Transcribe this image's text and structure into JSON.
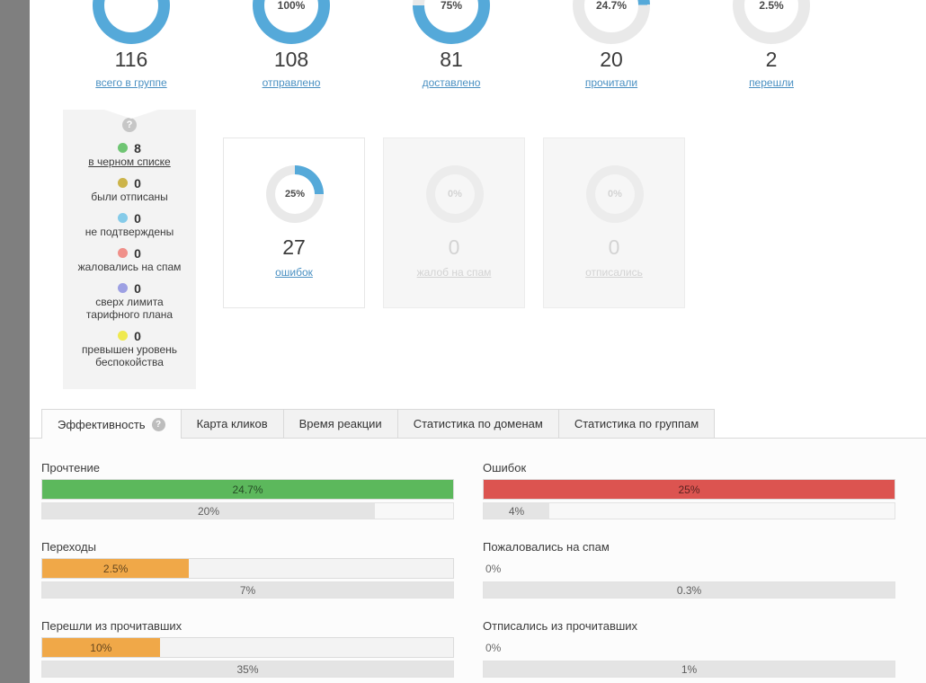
{
  "ui": {
    "help": "?"
  },
  "colors": {
    "accent": "#55a9d9",
    "donut_track": "#e9e9e9",
    "disabled_track": "#ececec",
    "green": "#5cb85c",
    "orange": "#f0a848",
    "red": "#dc5450",
    "link": "#4a90c2"
  },
  "top_cards": [
    {
      "percent": "",
      "value": "116",
      "label": "всего в группе",
      "donut_percent": 100
    },
    {
      "percent": "100%",
      "value": "108",
      "label": "отправлено",
      "donut_percent": 100
    },
    {
      "percent": "75%",
      "value": "81",
      "label": "доставлено",
      "donut_percent": 75
    },
    {
      "percent": "24.7%",
      "value": "20",
      "label": "прочитали",
      "donut_percent": 24.7
    },
    {
      "percent": "2.5%",
      "value": "2",
      "label": "перешли",
      "donut_percent": 2.5
    }
  ],
  "legend": {
    "items": [
      {
        "color": "#6fc573",
        "value": "8",
        "label": "в черном списке",
        "link": true
      },
      {
        "color": "#ccb44a",
        "value": "0",
        "label": "были отписаны"
      },
      {
        "color": "#85cbe9",
        "value": "0",
        "label": "не подтверждены"
      },
      {
        "color": "#f0908a",
        "value": "0",
        "label": "жаловались на спам"
      },
      {
        "color": "#9da0e3",
        "value": "0",
        "label": "сверх лимита тарифного плана"
      },
      {
        "color": "#efe94e",
        "value": "0",
        "label": "превышен уровень беспокойства"
      }
    ]
  },
  "second_cards": [
    {
      "percent": "25%",
      "value": "27",
      "label": "ошибок",
      "donut_percent": 25,
      "disabled": false
    },
    {
      "percent": "0%",
      "value": "0",
      "label": "жалоб на спам",
      "donut_percent": 0,
      "disabled": true
    },
    {
      "percent": "0%",
      "value": "0",
      "label": "отписались",
      "donut_percent": 0,
      "disabled": true
    }
  ],
  "tabs": [
    {
      "label": "Эффективность",
      "active": true,
      "help": true
    },
    {
      "label": "Карта кликов"
    },
    {
      "label": "Время реакции"
    },
    {
      "label": "Статистика по доменам"
    },
    {
      "label": "Статистика по группам"
    }
  ],
  "metrics": {
    "left": [
      {
        "label": "Прочтение",
        "value": "24.7%",
        "value_num": 24.7,
        "avg": "20%",
        "avg_num": 20,
        "color": "green"
      },
      {
        "label": "Переходы",
        "value": "2.5%",
        "value_num": 2.5,
        "avg": "7%",
        "avg_num": 7,
        "color": "orange"
      },
      {
        "label": "Перешли из прочитавших",
        "value": "10%",
        "value_num": 10,
        "avg": "35%",
        "avg_num": 35,
        "color": "orange"
      }
    ],
    "right": [
      {
        "label": "Ошибок",
        "value": "25%",
        "value_num": 25,
        "avg": "4%",
        "avg_num": 4,
        "color": "red"
      },
      {
        "label": "Пожаловались на спам",
        "value": "0%",
        "value_num": 0,
        "avg": "0.3%",
        "avg_num": 0.3,
        "color": "none"
      },
      {
        "label": "Отписались из прочитавших",
        "value": "0%",
        "value_num": 0,
        "avg": "1%",
        "avg_num": 1,
        "color": "none"
      }
    ]
  }
}
